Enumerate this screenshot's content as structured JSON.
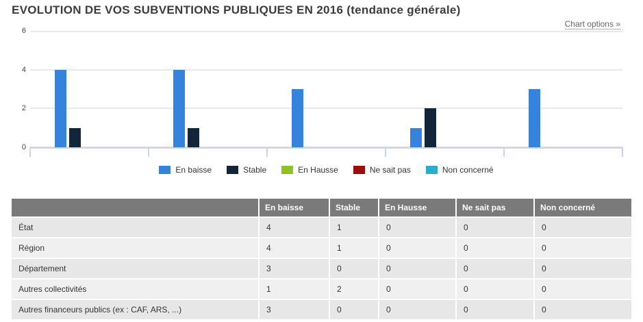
{
  "page": {
    "title": "EVOLUTION DE VOS SUBVENTIONS PUBLIQUES EN 2016 (tendance générale)",
    "chart_options_label": "Chart options »"
  },
  "chart_data": {
    "type": "bar",
    "title": "EVOLUTION DE VOS SUBVENTIONS PUBLIQUES EN 2016 (tendance générale)",
    "categories": [
      "État",
      "Région",
      "Département",
      "Autres collectivités",
      "Autres financeurs publics (ex : CAF, ARS, ...)"
    ],
    "series": [
      {
        "name": "En baisse",
        "color": "#3583dc",
        "values": [
          4,
          4,
          3,
          1,
          3
        ]
      },
      {
        "name": "Stable",
        "color": "#132538",
        "values": [
          1,
          1,
          0,
          2,
          0
        ]
      },
      {
        "name": "En Hausse",
        "color": "#8cc320",
        "values": [
          0,
          0,
          0,
          0,
          0
        ]
      },
      {
        "name": "Ne sait pas",
        "color": "#9c0e0e",
        "values": [
          0,
          0,
          0,
          0,
          0
        ]
      },
      {
        "name": "Non concerné",
        "color": "#29afcd",
        "values": [
          0,
          0,
          0,
          0,
          0
        ]
      }
    ],
    "ylim": [
      0,
      6
    ],
    "yticks": [
      0,
      2,
      4,
      6
    ],
    "xlabel": "",
    "ylabel": "",
    "grid": "horizontal",
    "legend_position": "bottom",
    "x_tick_labels_visible": false
  },
  "table": {
    "headers": [
      "",
      "En baisse",
      "Stable",
      "En Hausse",
      "Ne sait pas",
      "Non concerné"
    ],
    "rows": [
      {
        "label": "État",
        "values": [
          4,
          1,
          0,
          0,
          0
        ]
      },
      {
        "label": "Région",
        "values": [
          4,
          1,
          0,
          0,
          0
        ]
      },
      {
        "label": "Département",
        "values": [
          3,
          0,
          0,
          0,
          0
        ]
      },
      {
        "label": "Autres collectivités",
        "values": [
          1,
          2,
          0,
          0,
          0
        ]
      },
      {
        "label": "Autres financeurs publics (ex : CAF, ARS, ...)",
        "values": [
          3,
          0,
          0,
          0,
          0
        ]
      }
    ]
  },
  "colors": {
    "header_background": "#7a7a7a",
    "header_text": "#ffffff",
    "row_odd": "#e7e7e7",
    "row_even": "#f0f0f0",
    "title_text": "#3c3c3c",
    "link_text": "#666666"
  }
}
